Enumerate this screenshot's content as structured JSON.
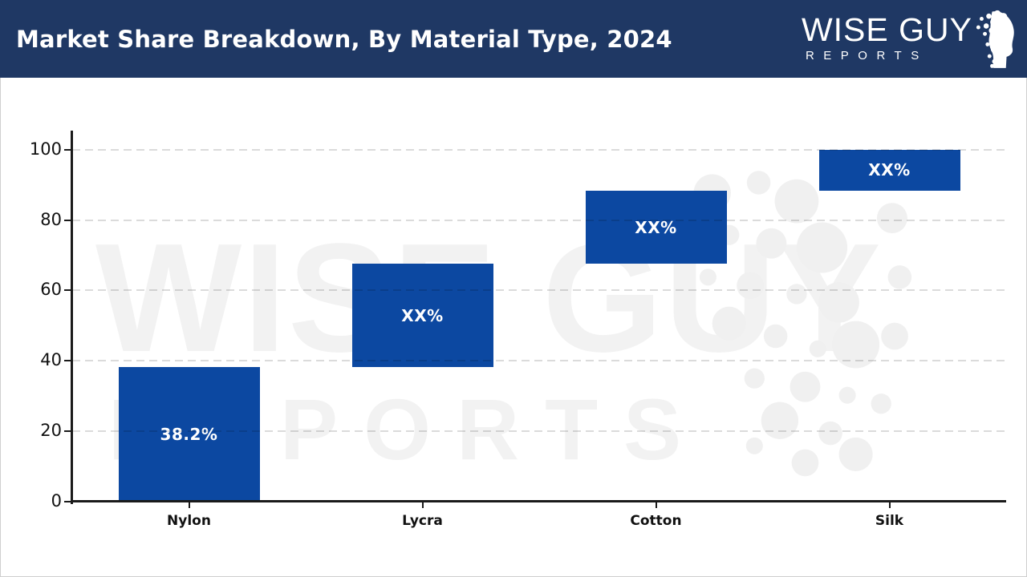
{
  "header": {
    "title": "Market Share Breakdown, By Material Type, 2024",
    "logo": {
      "line1": "WISE GUY",
      "line2": "REPORTS"
    }
  },
  "watermark": {
    "line1": "WISE GUY",
    "line2": "REPORTS"
  },
  "chart_data": {
    "type": "bar",
    "subtype": "waterfall",
    "title": "Market Share Breakdown, By Material Type, 2024",
    "categories": [
      "Nylon",
      "Lycra",
      "Cotton",
      "Silk"
    ],
    "segments": [
      {
        "category": "Nylon",
        "start": 0,
        "end": 38.2,
        "label": "38.2%"
      },
      {
        "category": "Lycra",
        "start": 38.2,
        "end": 67.6,
        "label": "XX%"
      },
      {
        "category": "Cotton",
        "start": 67.6,
        "end": 88.3,
        "label": "XX%"
      },
      {
        "category": "Silk",
        "start": 88.3,
        "end": 100,
        "label": "XX%"
      }
    ],
    "xlabel": "",
    "ylabel": "",
    "yticks": [
      0,
      20,
      40,
      60,
      80,
      100
    ],
    "ylim": [
      0,
      105
    ],
    "grid": {
      "axis": "y",
      "style": "dashed"
    },
    "legend": "none",
    "bar_color": "#0c48a1",
    "bar_label_color": "#ffffff"
  },
  "colors": {
    "header_bg": "#1f3864",
    "bar": "#0c48a1",
    "axis": "#1a1a1a",
    "card_border": "#cfcfcf",
    "watermark": "#f2f2f2",
    "background": "#ffffff"
  }
}
